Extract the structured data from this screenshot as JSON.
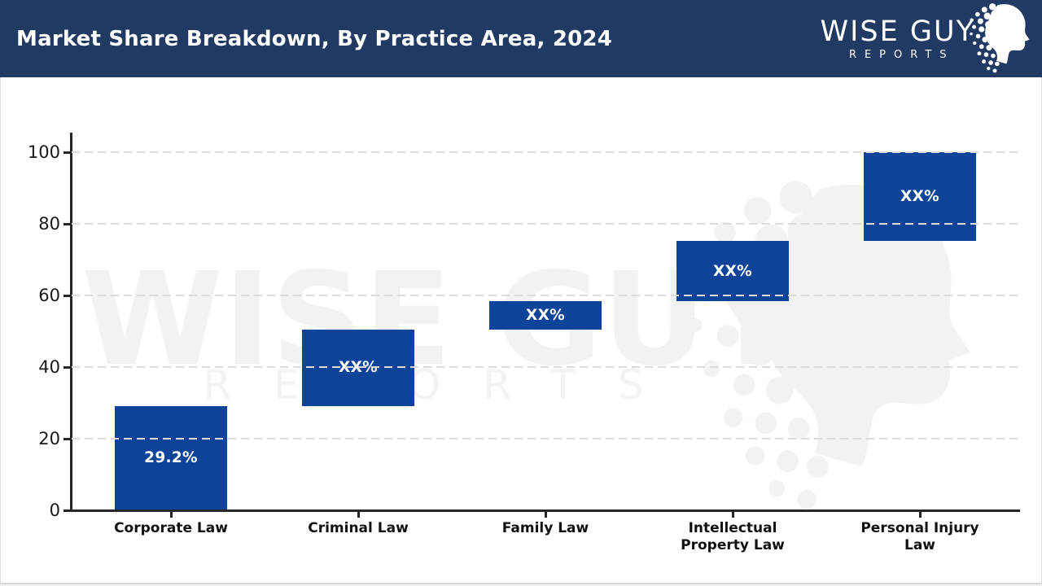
{
  "header": {
    "title": "Market Share Breakdown, By Practice Area, 2024",
    "background": "#213a64",
    "logo": {
      "primary": "WISE GUY",
      "secondary": "REPORTS"
    }
  },
  "watermark": {
    "primary": "WISE GUY",
    "secondary": "REPORTS"
  },
  "chart_data": {
    "type": "bar",
    "variant": "waterfall",
    "title": "Market Share Breakdown, By Practice Area, 2024",
    "categories": [
      "Corporate Law",
      "Criminal Law",
      "Family Law",
      "Intellectual Property Law",
      "Personal Injury Law"
    ],
    "category_display_lines": [
      [
        "Corporate Law"
      ],
      [
        "Criminal Law"
      ],
      [
        "Family Law"
      ],
      [
        "Intellectual",
        "Property Law"
      ],
      [
        "Personal Injury",
        "Law"
      ]
    ],
    "segments": [
      {
        "category": "Corporate Law",
        "start": 0,
        "end": 29.2,
        "value": 29.2,
        "label": "29.2%"
      },
      {
        "category": "Criminal Law",
        "start": 29.2,
        "end": 50.5,
        "value": 21.3,
        "label": "XX%"
      },
      {
        "category": "Family Law",
        "start": 50.5,
        "end": 58.4,
        "value": 7.9,
        "label": "XX%"
      },
      {
        "category": "Intellectual Property Law",
        "start": 58.4,
        "end": 75.2,
        "value": 16.8,
        "label": "XX%"
      },
      {
        "category": "Personal Injury Law",
        "start": 75.2,
        "end": 100,
        "value": 24.8,
        "label": "XX%"
      }
    ],
    "xlabel": "",
    "ylabel": "",
    "ylim": [
      0,
      100
    ],
    "yticks": [
      0,
      20,
      40,
      60,
      80,
      100
    ],
    "grid": {
      "horizontal": true,
      "style": "dashed",
      "color": "#dcdcdc",
      "drawn_above_bars": true
    },
    "legend": "none",
    "bar_color": "#0d4499",
    "bar_label_color": "#ffffff",
    "axis_color": "#262626",
    "tick_label_color": "#1a1a1a"
  }
}
